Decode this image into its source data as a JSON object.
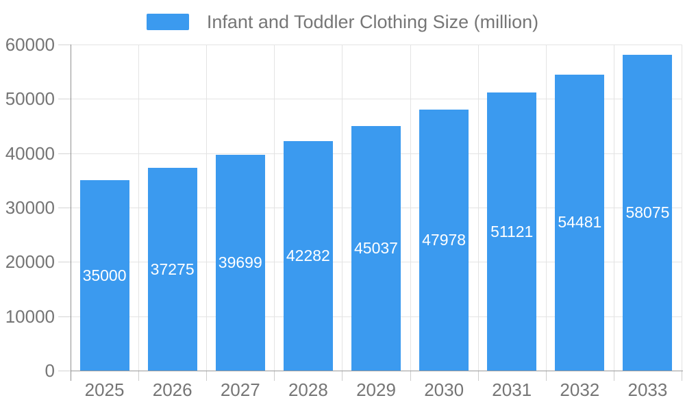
{
  "legend": {
    "label": "Infant and Toddler Clothing Size (million)"
  },
  "chart_data": {
    "type": "bar",
    "title": "Infant and Toddler Clothing Size (million)",
    "categories": [
      "2025",
      "2026",
      "2027",
      "2028",
      "2029",
      "2030",
      "2031",
      "2032",
      "2033"
    ],
    "series": [
      {
        "name": "Infant and Toddler Clothing Size (million)",
        "values": [
          35000,
          37275,
          39699,
          42282,
          45037,
          47978,
          51121,
          54481,
          58075
        ],
        "color": "#3b9aef",
        "label_color": "#ffffff"
      }
    ],
    "xlabel": "",
    "ylabel": "",
    "ylim": [
      0,
      60000
    ],
    "yticks": [
      0,
      10000,
      20000,
      30000,
      40000,
      50000,
      60000
    ],
    "grid": true,
    "bar_value_labels": true,
    "legend_position": "top-center",
    "colors": {
      "axis_text": "#757575",
      "legend_text": "#767676",
      "gridline": "#e3e3e3",
      "axis_line": "#8f8f8f"
    }
  }
}
